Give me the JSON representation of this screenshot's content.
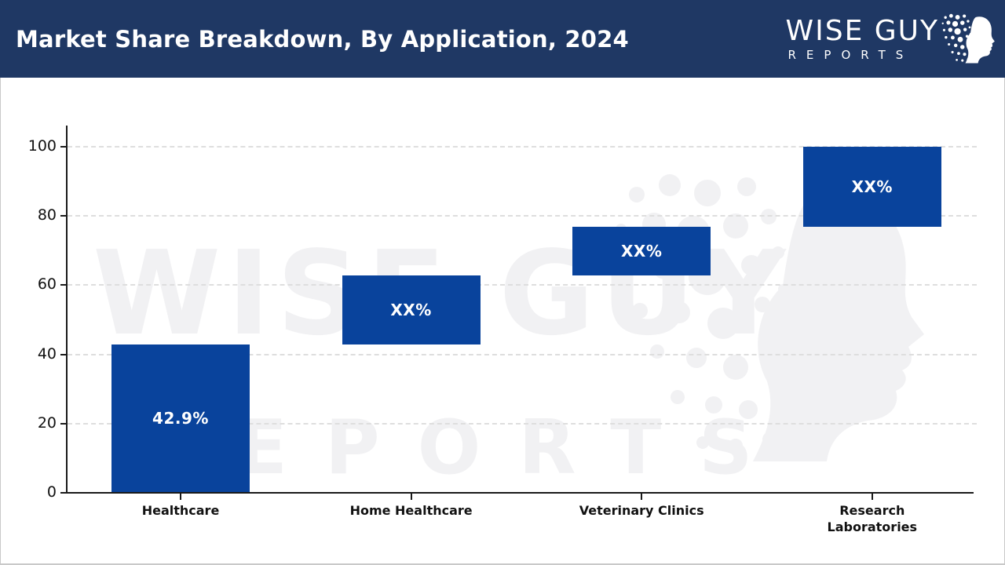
{
  "header": {
    "title": "Market Share Breakdown, By Application, 2024",
    "logo": {
      "line1": "WISE GUY",
      "line2": "REPORTS"
    }
  },
  "watermark": {
    "line1": "WISE GUY",
    "line2": "REPORTS"
  },
  "colors": {
    "header_bg": "#1f3864",
    "header_text": "#ffffff",
    "bar": "#09439c",
    "bar_label": "#ffffff",
    "axis": "#1a1a1a",
    "tick_label": "#111111",
    "grid": "#dedede",
    "watermark": "#f1f1f3",
    "border": "#c9c9c9",
    "background": "#ffffff"
  },
  "chart_data": {
    "type": "bar",
    "variant": "waterfall-floating-bars",
    "title": "Market Share Breakdown, By Application, 2024",
    "xlabel": "",
    "ylabel": "",
    "ylim": [
      0,
      106
    ],
    "yticks": [
      0,
      20,
      40,
      60,
      80,
      100
    ],
    "grid": true,
    "grid_style": "dashed",
    "legend": "none",
    "categories": [
      "Healthcare",
      "Home Healthcare",
      "Veterinary Clinics",
      "Research Laboratories"
    ],
    "category_lines": [
      [
        "Healthcare"
      ],
      [
        "Home Healthcare"
      ],
      [
        "Veterinary Clinics"
      ],
      [
        "Research",
        "Laboratories"
      ]
    ],
    "segments": [
      {
        "category": "Healthcare",
        "start": 0,
        "end": 42.9,
        "label": "42.9%"
      },
      {
        "category": "Home Healthcare",
        "start": 42.9,
        "end": 62.9,
        "label": "XX%"
      },
      {
        "category": "Veterinary Clinics",
        "start": 62.9,
        "end": 76.9,
        "label": "XX%"
      },
      {
        "category": "Research Laboratories",
        "start": 76.9,
        "end": 100,
        "label": "XX%"
      }
    ]
  }
}
